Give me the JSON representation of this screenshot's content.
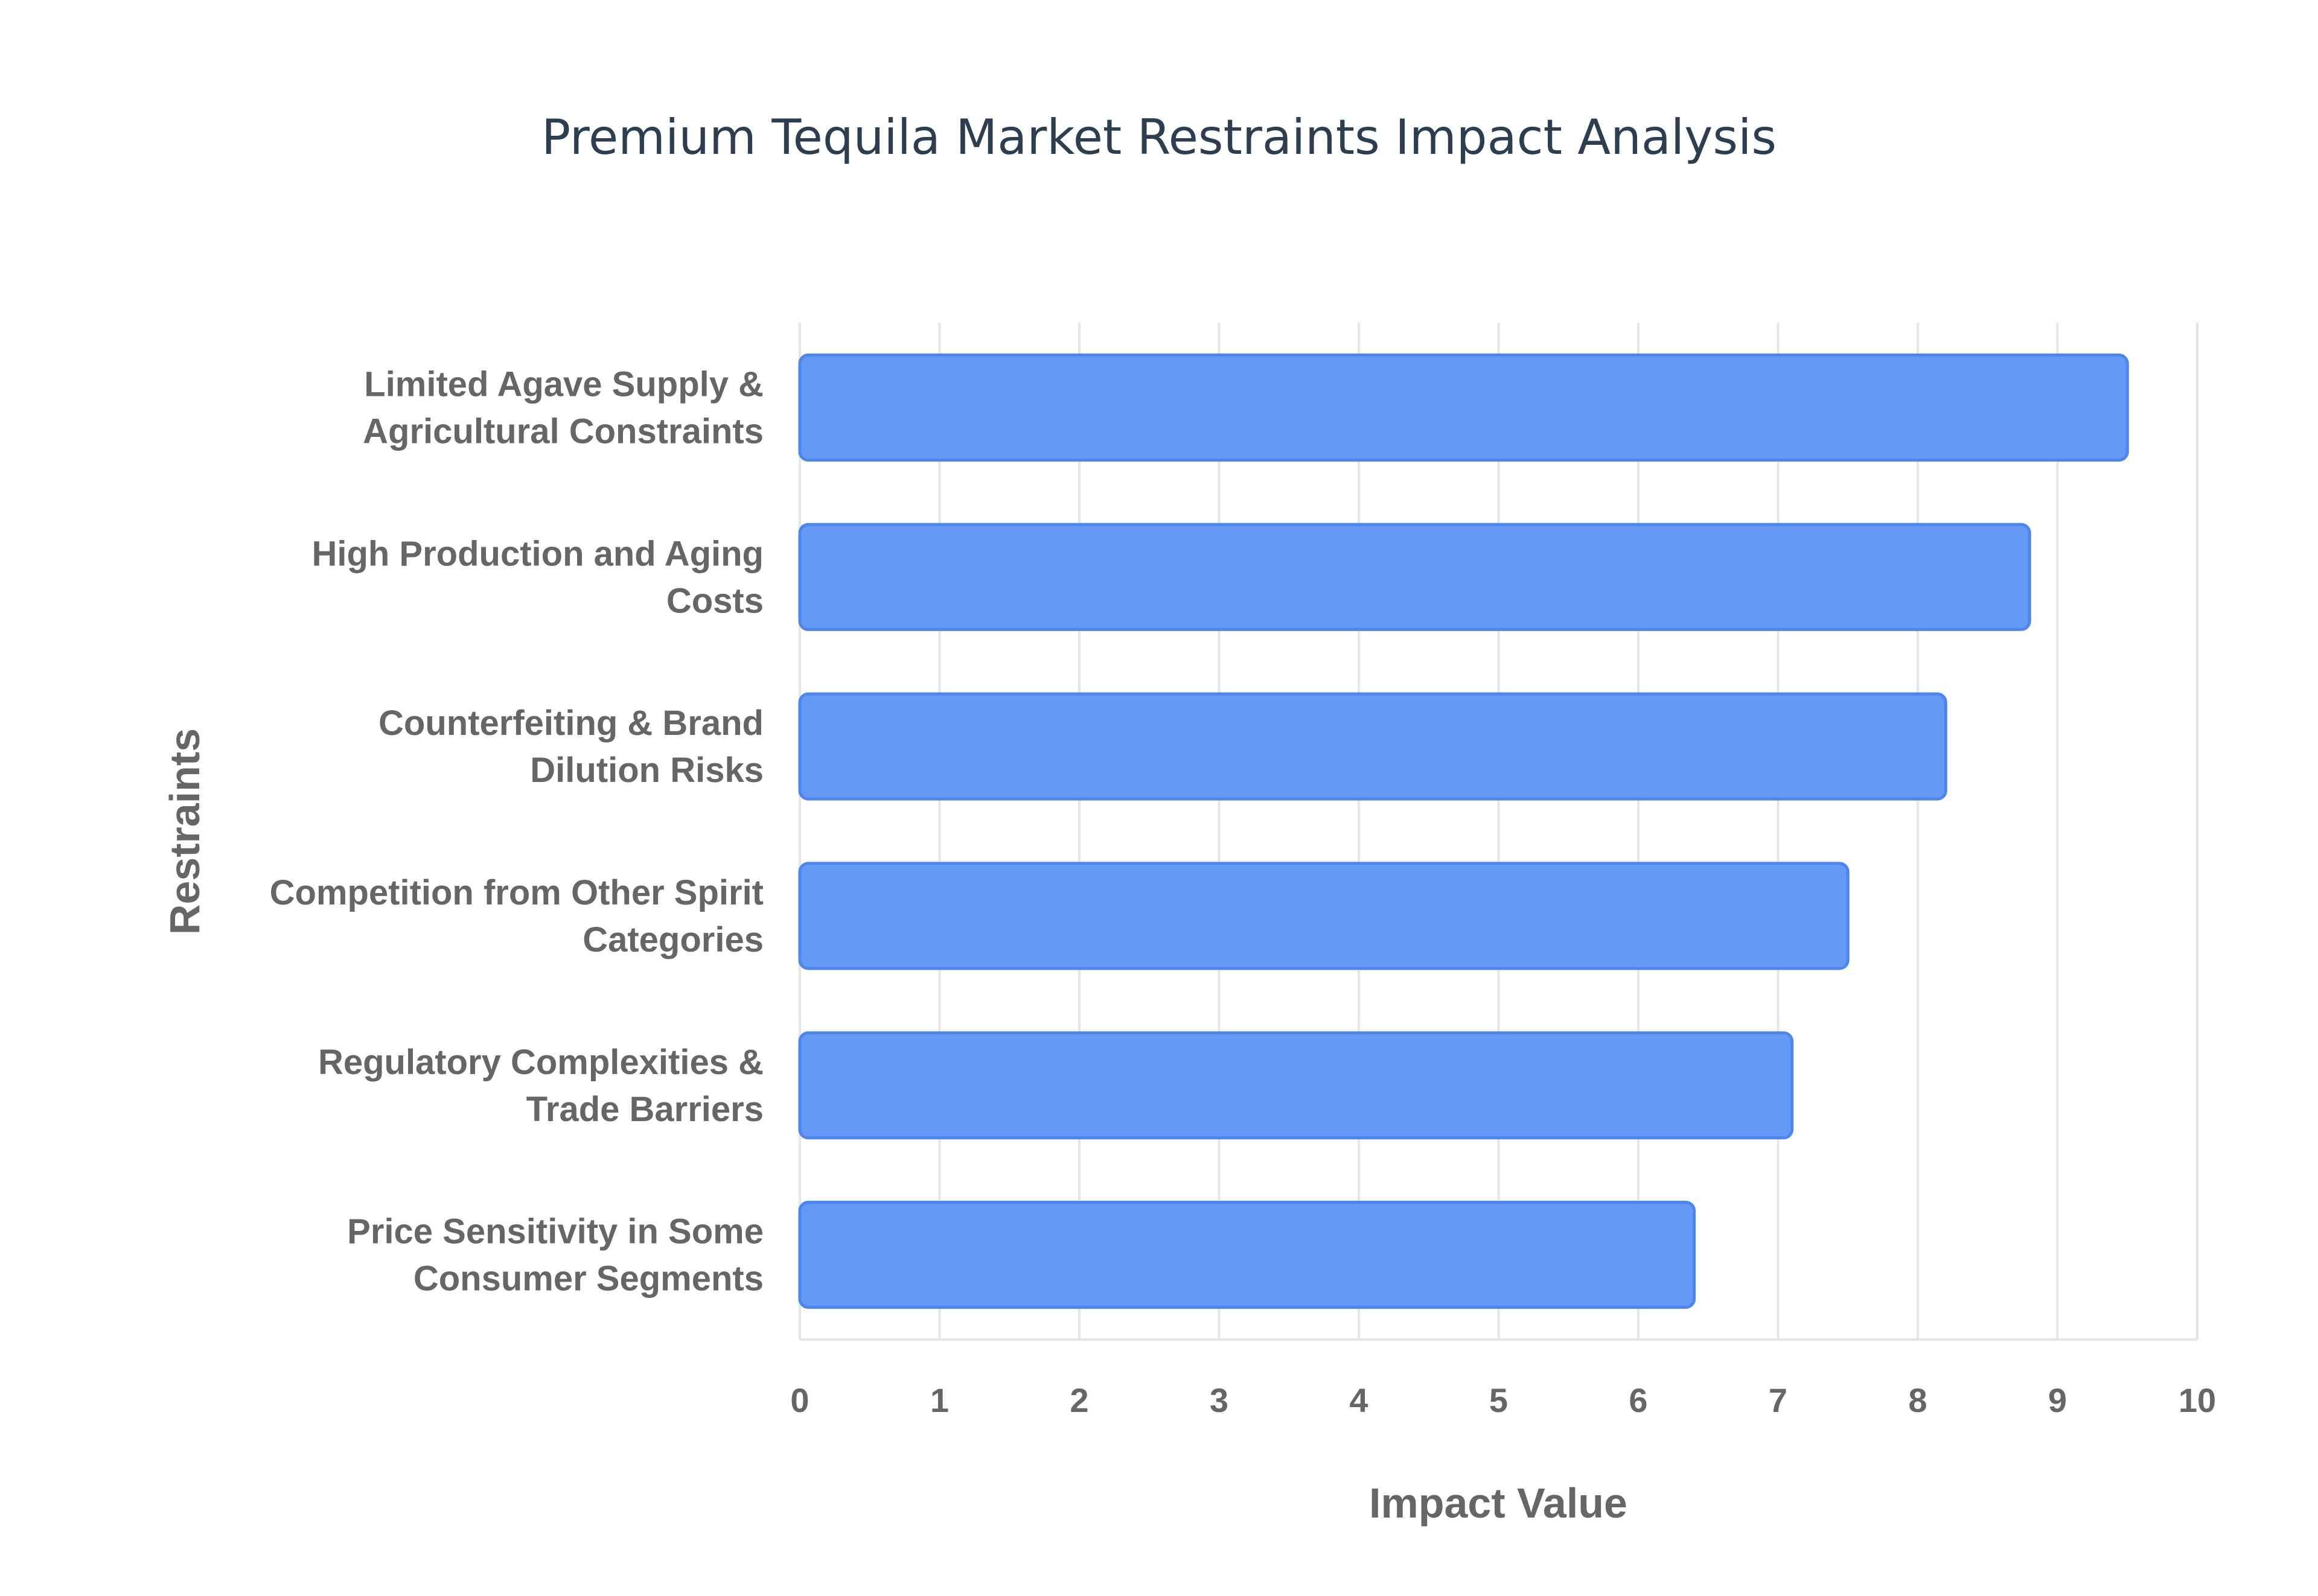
{
  "chart_data": {
    "type": "bar",
    "orientation": "horizontal",
    "title": "Premium Tequila Market Restraints Impact Analysis",
    "xlabel": "Impact Value",
    "ylabel": "Restraints",
    "xlim": [
      0,
      10
    ],
    "x_ticks": [
      "0",
      "1",
      "2",
      "3",
      "4",
      "5",
      "6",
      "7",
      "8",
      "9",
      "10"
    ],
    "grid": true,
    "legend": "none",
    "categories": [
      [
        "Limited Agave Supply &",
        "Agricultural Constraints"
      ],
      [
        "High Production and Aging",
        "Costs"
      ],
      [
        "Counterfeiting & Brand",
        "Dilution Risks"
      ],
      [
        "Competition from Other Spirit",
        "Categories"
      ],
      [
        "Regulatory Complexities &",
        "Trade Barriers"
      ],
      [
        "Price Sensitivity in Some",
        "Consumer Segments"
      ]
    ],
    "values": [
      9.5,
      8.8,
      8.2,
      7.5,
      7.1,
      6.4
    ],
    "colors": {
      "bar_fill": "#6699f5",
      "bar_stroke": "#4d86ec",
      "grid": "#e6e6e6",
      "title": "#2c3e50",
      "labels": "#666666"
    }
  }
}
